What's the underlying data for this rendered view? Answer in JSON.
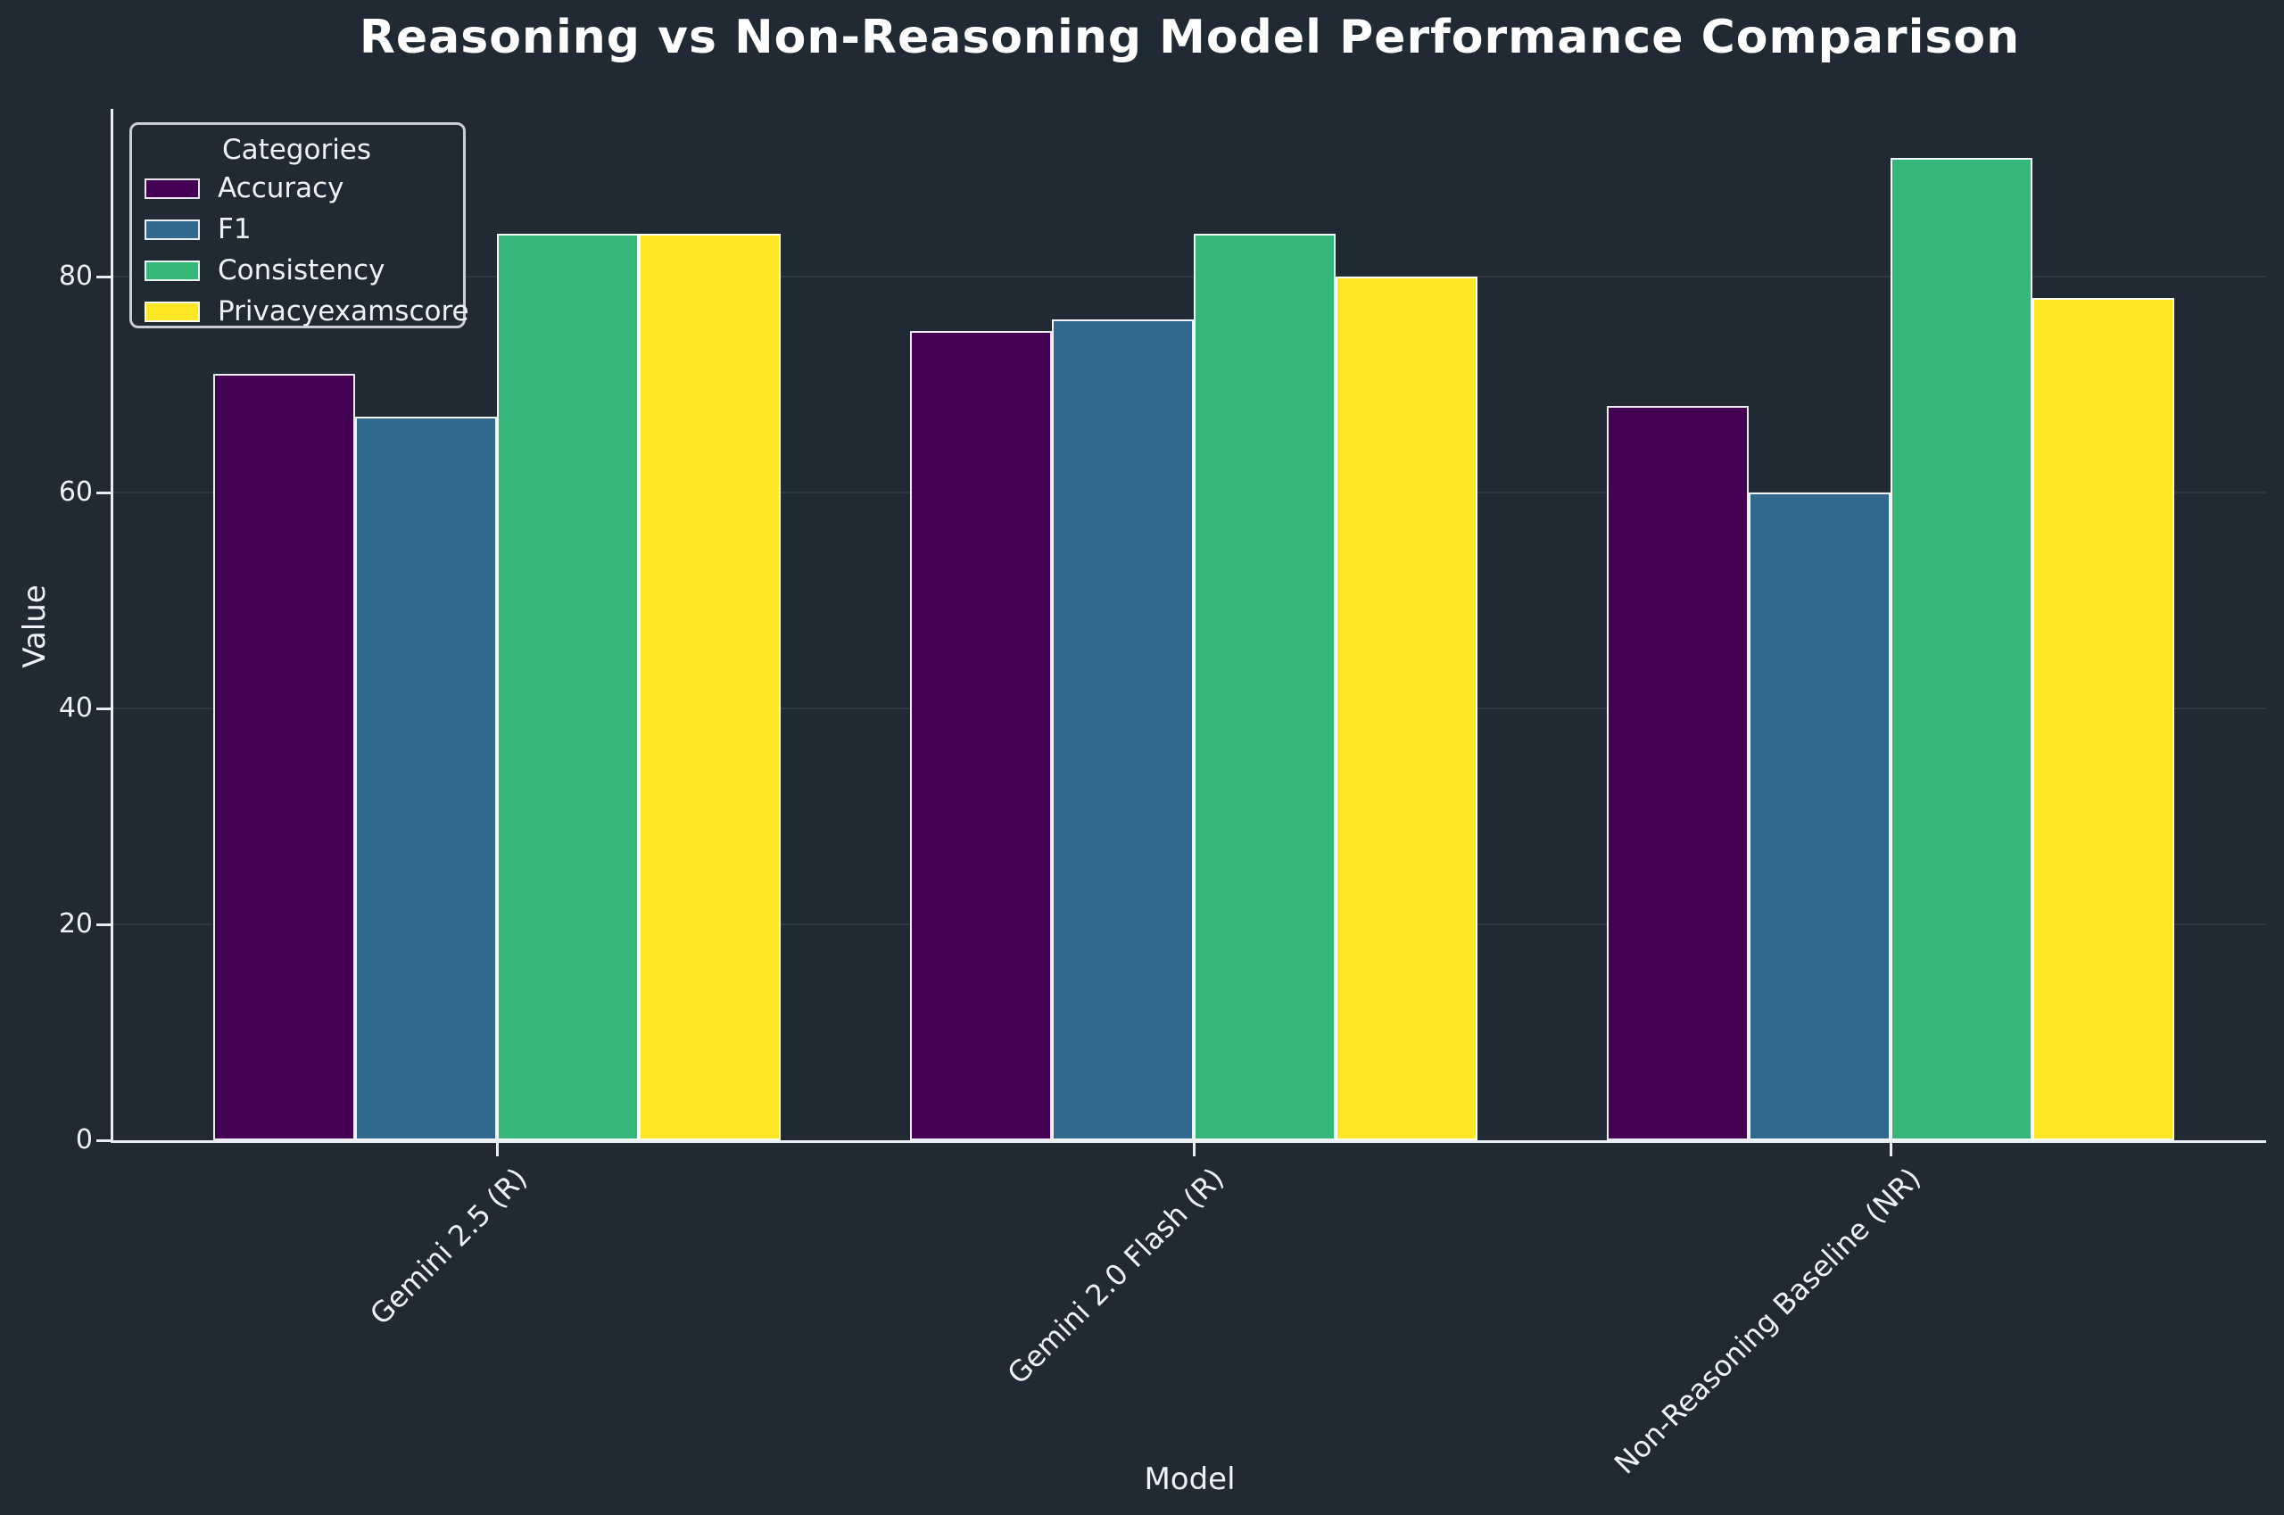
{
  "chart_data": {
    "type": "bar",
    "title": "Reasoning vs Non-Reasoning Model Performance Comparison",
    "xlabel": "Model",
    "ylabel": "Value",
    "categories": [
      "Gemini 2.5 (R)",
      "Gemini 2.0 Flash (R)",
      "Non-Reasoning Baseline (NR)"
    ],
    "series": [
      {
        "name": "Accuracy",
        "color": "#440154",
        "values": [
          71,
          75,
          68
        ]
      },
      {
        "name": "F1",
        "color": "#31688e",
        "values": [
          67,
          76,
          60
        ]
      },
      {
        "name": "Consistency",
        "color": "#35b779",
        "values": [
          84,
          84,
          91
        ]
      },
      {
        "name": "Privacyexamscore",
        "color": "#fde725",
        "values": [
          84,
          80,
          78
        ]
      }
    ],
    "yticks": [
      0,
      20,
      40,
      60,
      80
    ],
    "ylim": [
      0,
      95.5
    ],
    "grid": true,
    "legend": {
      "title": "Categories",
      "position": "upper-left"
    }
  },
  "colors": {
    "background": "#1f2a35",
    "text": "#eef2f7",
    "axis": "#e9eef4",
    "gridline": "rgba(255,255,255,0.07)",
    "bar_edge": "#ffffff"
  }
}
